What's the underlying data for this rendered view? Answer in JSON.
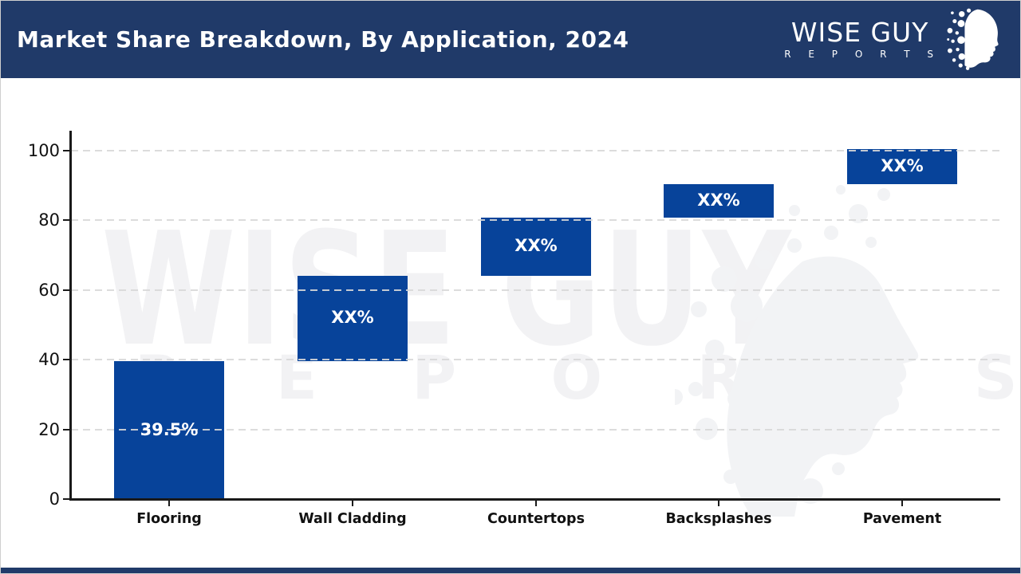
{
  "header": {
    "title": "Market Share Breakdown, By Application, 2024",
    "bg_color": "#203a69",
    "text_color": "#ffffff"
  },
  "logo": {
    "line1": "WISE GUY",
    "line2": "R E P O R T S",
    "head_icon": "dotted-head-profile"
  },
  "watermark": {
    "line1": "WISE GUY",
    "line2": "R E P O R T S",
    "color": "#f2f2f4",
    "face_icon": "dotted-head-profile"
  },
  "chart_data": {
    "type": "bar",
    "subtype": "waterfall",
    "title": "Market Share Breakdown, By Application, 2024",
    "categories": [
      "Flooring",
      "Wall Cladding",
      "Countertops",
      "Backsplashes",
      "Pavement"
    ],
    "segments": [
      {
        "category": "Flooring",
        "start": 0,
        "end": 39.5,
        "label": "39.5%"
      },
      {
        "category": "Wall Cladding",
        "start": 39.5,
        "end": 64.1,
        "label": "XX%"
      },
      {
        "category": "Countertops",
        "start": 64.1,
        "end": 80.6,
        "label": "XX%"
      },
      {
        "category": "Backsplashes",
        "start": 80.6,
        "end": 90.3,
        "label": "XX%"
      },
      {
        "category": "Pavement",
        "start": 90.3,
        "end": 100.3,
        "label": "XX%"
      }
    ],
    "xlabel": "",
    "ylabel": "",
    "ylim": [
      0,
      105.5
    ],
    "yticks": [
      0,
      20,
      40,
      60,
      80,
      100
    ],
    "grid": "horizontal-dashed",
    "legend": "none",
    "bar_color": "#07439a",
    "bar_label_color": "#ffffff",
    "grid_color": "#d8d8d8",
    "axis_color": "#1a1a1a",
    "unit": "%"
  }
}
